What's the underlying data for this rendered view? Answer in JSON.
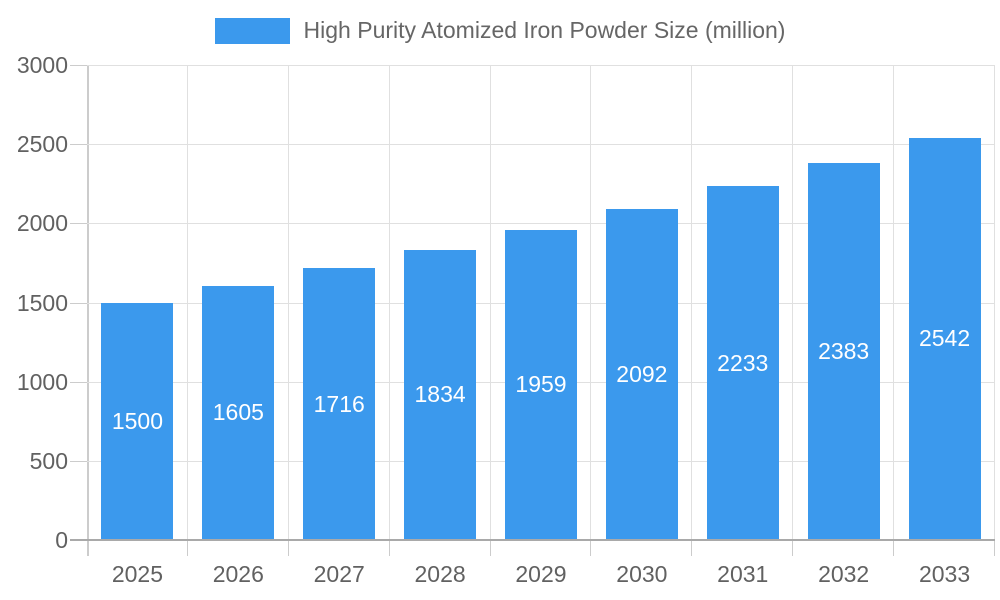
{
  "colors": {
    "bar": "#3B99ED",
    "grid": "#e0e0e0",
    "axis_x": "#a9a9a9",
    "axis_y": "#cccccc",
    "tick_label": "#616161",
    "bar_label": "#ffffff",
    "legend_text": "#666666",
    "background": "#ffffff"
  },
  "chart_data": {
    "type": "bar",
    "title": "High Purity Atomized Iron Powder Size (million)",
    "categories": [
      "2025",
      "2026",
      "2027",
      "2028",
      "2029",
      "2030",
      "2031",
      "2032",
      "2033"
    ],
    "values": [
      1500,
      1605,
      1716,
      1834,
      1959,
      2092,
      2233,
      2383,
      2542
    ],
    "xlabel": "",
    "ylabel": "",
    "ylim": [
      0,
      3000
    ],
    "yticks": [
      0,
      500,
      1000,
      1500,
      2000,
      2500,
      3000
    ],
    "grid": true,
    "legend_position": "top-center",
    "bar_labels": "inside-center"
  }
}
